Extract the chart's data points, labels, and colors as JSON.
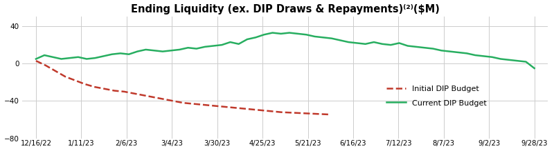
{
  "title": "Ending Liquidity (ex. DIP Draws & Repayments)",
  "title_super": "(2)",
  "title_end": "($M)",
  "ylim": [
    -80,
    50
  ],
  "yticks": [
    -80,
    -40,
    0,
    40
  ],
  "xlabels": [
    "12/16/22",
    "1/11/23",
    "2/6/23",
    "3/4/23",
    "3/30/23",
    "4/25/23",
    "5/21/23",
    "6/16/23",
    "7/12/23",
    "8/7/23",
    "9/2/23",
    "9/28/23"
  ],
  "n_xticks": 12,
  "initial_y": [
    3,
    -2,
    -8,
    -14,
    -18,
    -22,
    -25,
    -27,
    -29,
    -30,
    -32,
    -34,
    -36,
    -38,
    -40,
    -42,
    -43,
    -44,
    -45,
    -46,
    -47,
    -48,
    -49,
    -50,
    -51,
    -52,
    -52.5,
    -53,
    -53.5,
    -54,
    -54.5
  ],
  "current_y": [
    5,
    9,
    7,
    5,
    6,
    7,
    5,
    6,
    8,
    10,
    11,
    10,
    13,
    15,
    14,
    13,
    14,
    15,
    17,
    16,
    18,
    19,
    20,
    23,
    21,
    26,
    28,
    31,
    33,
    32,
    33,
    32,
    31,
    29,
    28,
    27,
    25,
    23,
    22,
    21,
    23,
    21,
    20,
    22,
    19,
    18,
    17,
    16,
    14,
    13,
    12,
    11,
    9,
    8,
    7,
    5,
    4,
    3,
    2,
    -5
  ],
  "initial_color": "#c0392b",
  "current_color": "#27ae60",
  "background_color": "#ffffff",
  "grid_color": "#cccccc",
  "legend_labels": [
    "Initial DIP Budget",
    "Current DIP Budget"
  ],
  "figsize": [
    8.0,
    2.19
  ],
  "dpi": 100
}
